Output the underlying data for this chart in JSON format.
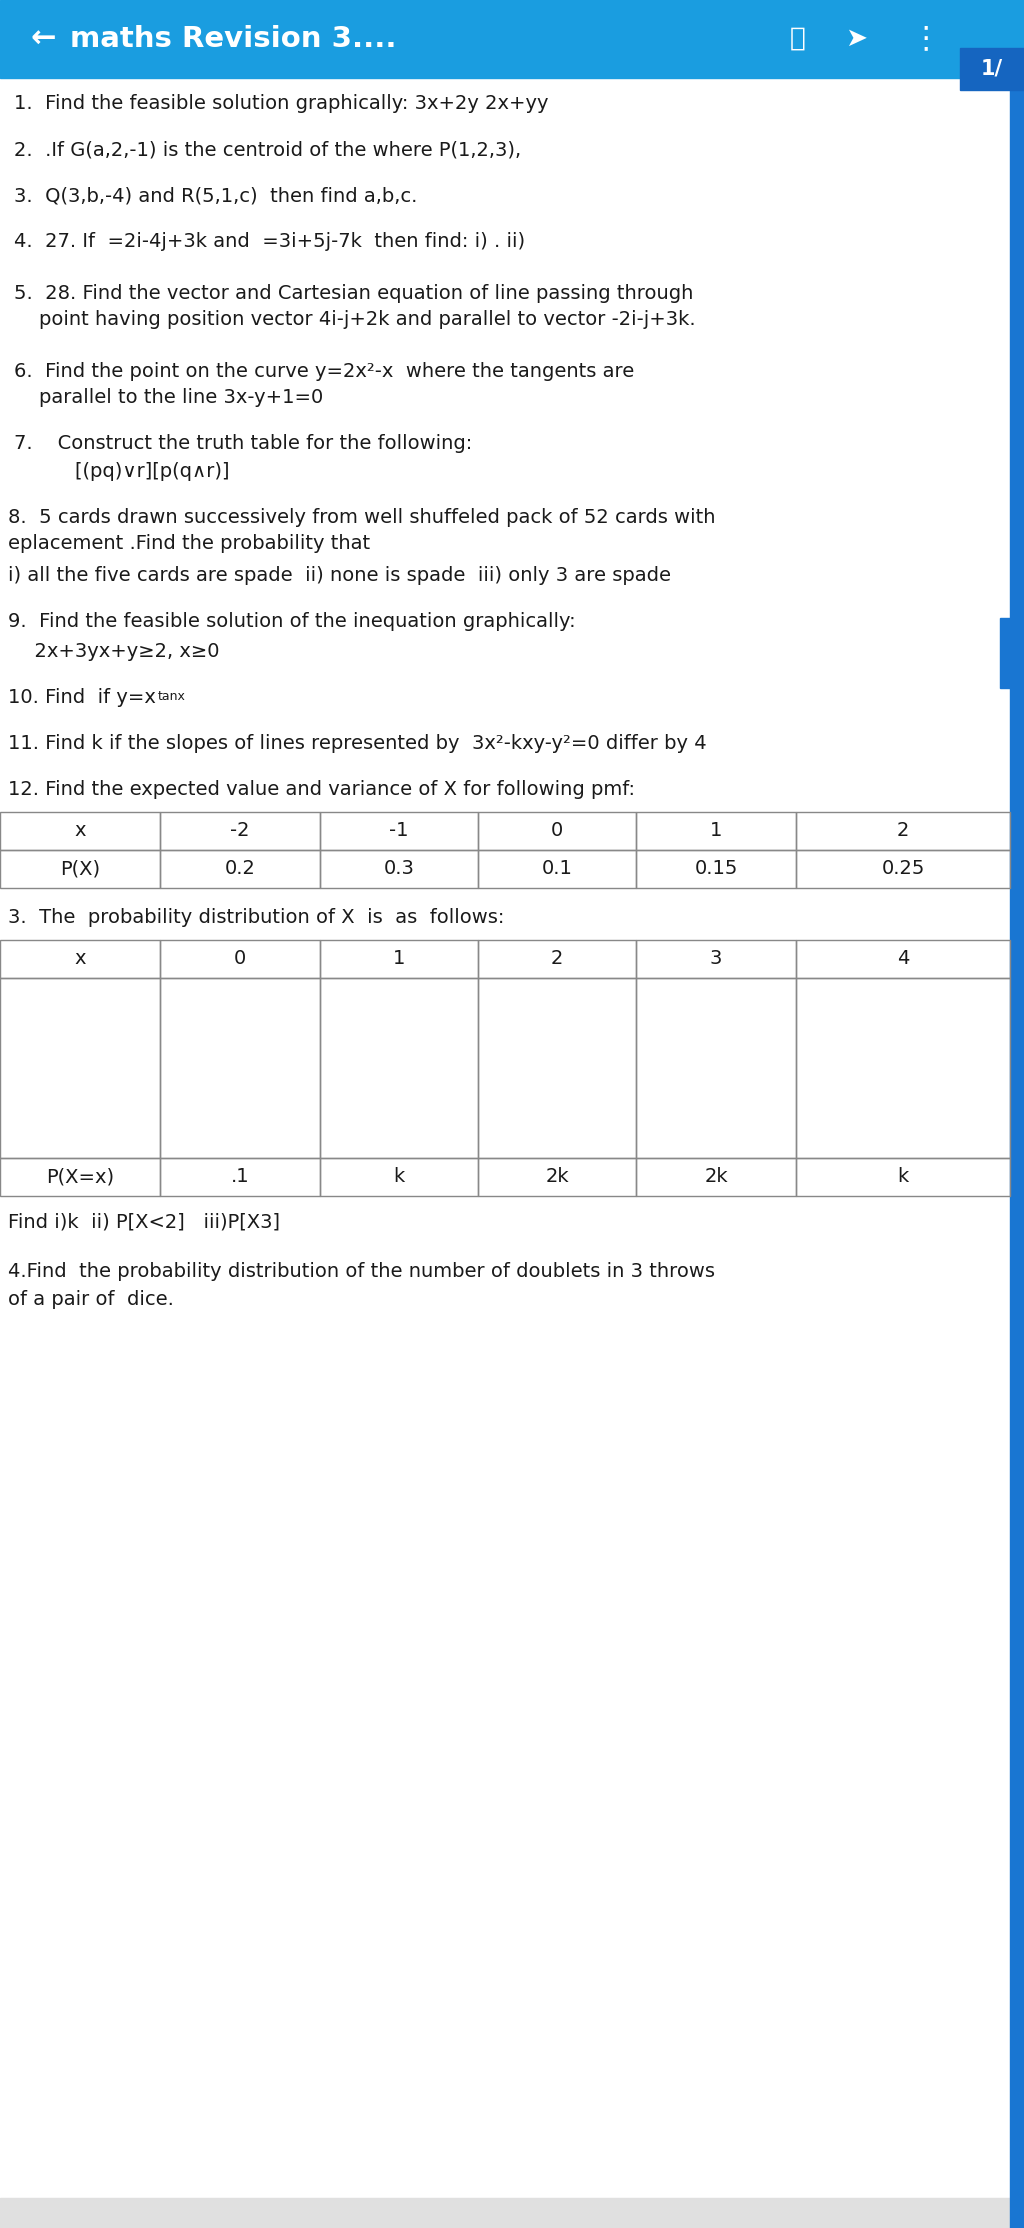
{
  "header_text": "maths Revision 3....",
  "header_bg": "#1A9DE0",
  "header_text_color": "#FFFFFF",
  "badge_bg": "#1565C0",
  "body_bg": "#FFFFFF",
  "body_text_color": "#1a1a1a",
  "sidebar_color": "#1976D2",
  "fs_header": 20,
  "fs_body": 14,
  "q1": "1.  Find the feasible solution graphically: 3x+2y 2x+yy",
  "q2": "2.  .If G(a,2,-1) is the centroid of the where P(1,2,3),",
  "q3": "3.  Q(3,b,-4) and R(5,1,c)  then find a,b,c.",
  "q4": "4.  27. If  =2i-4j+3k and  =3i+5j-7k  then find: i) . ii)",
  "q5a": "5.  28. Find the vector and Cartesian equation of line passing through",
  "q5b": "    point having position vector 4i-j+2k and parallel to vector -2i-j+3k.",
  "q6a": "6.  Find the point on the curve y=2x²-x  where the tangents are",
  "q6b": "    parallel to the line 3x-y+1=0",
  "q7a": "7.    Construct the truth table for the following:",
  "q7b": "    [(pq)∨r][p(q∧r)]",
  "q8a": "8.  5 cards drawn successively from well shuffeled pack of 52 cards with",
  "q8b": "eplacement .Find the probability that",
  "q8c": "i) all the five cards are spade  ii) none is spade  iii) only 3 are spade",
  "q9a": "9.  Find the feasible solution of the inequation graphically:",
  "q9b": "  2x+3yx+y≥2, x≥0",
  "q10": "10. Find  if y=x",
  "q10sup": "tanx",
  "q11": "11. Find k if the slopes of lines represented by  3x²-kxy-y²=0 differ by 4",
  "q12": "12. Find the expected value and variance of X for following pmf:",
  "t1_h": [
    "x",
    "-2",
    "-1",
    "0",
    "1",
    "2"
  ],
  "t1_r": [
    "P(X)",
    "0.2",
    "0.3",
    "0.1",
    "0.15",
    "0.25"
  ],
  "t2_label": "3.  The  probability distribution of X  is  as  follows:",
  "t2_h": [
    "x",
    "0",
    "1",
    "2",
    "3",
    "4"
  ],
  "t2_r": [
    "P(X=x)",
    ".1",
    "k",
    "2k",
    "2k",
    "k"
  ],
  "after_t2": "Find i)k  ii) P[X<2]   iii)P[X3]",
  "last_q1": "4.Find  the probability distribution of the number of doublets in 3 throws",
  "last_q2": "of a pair of  dice."
}
